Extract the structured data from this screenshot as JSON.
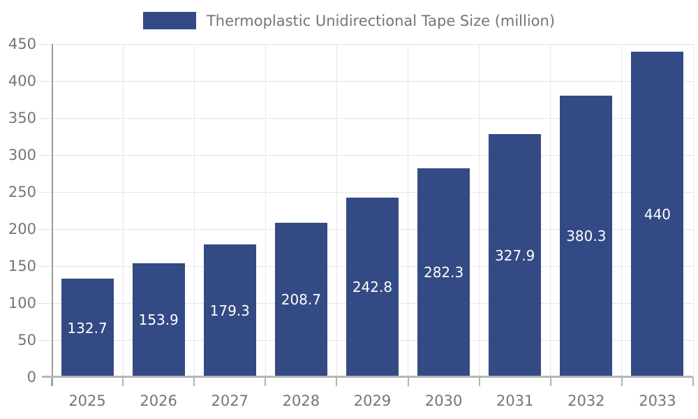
{
  "chart_data": {
    "type": "bar",
    "title": "Thermoplastic Unidirectional Tape Size (million)",
    "categories": [
      "2025",
      "2026",
      "2027",
      "2028",
      "2029",
      "2030",
      "2031",
      "2032",
      "2033"
    ],
    "values": [
      132.7,
      153.9,
      179.3,
      208.7,
      242.8,
      282.3,
      327.9,
      380.3,
      440
    ],
    "value_labels": [
      "132.7",
      "153.9",
      "179.3",
      "208.7",
      "242.8",
      "282.3",
      "327.9",
      "380.3",
      "440"
    ],
    "xlabel": "",
    "ylabel": "",
    "ylim": [
      0,
      450
    ],
    "ytick_step": 50,
    "ytick_labels": [
      "0",
      "50",
      "100",
      "150",
      "200",
      "250",
      "300",
      "350",
      "400",
      "450"
    ],
    "grid": true,
    "legend_position": "top-center",
    "value_label_position": "inside-center",
    "colors": {
      "bar": "#344a85",
      "bar_label_text": "#ffffff",
      "axis_text": "#757575",
      "gridline": "#e4e4e4",
      "axis_line": "#9a9a9a",
      "baseline": "#b6b6b6",
      "background": "#ffffff"
    }
  }
}
